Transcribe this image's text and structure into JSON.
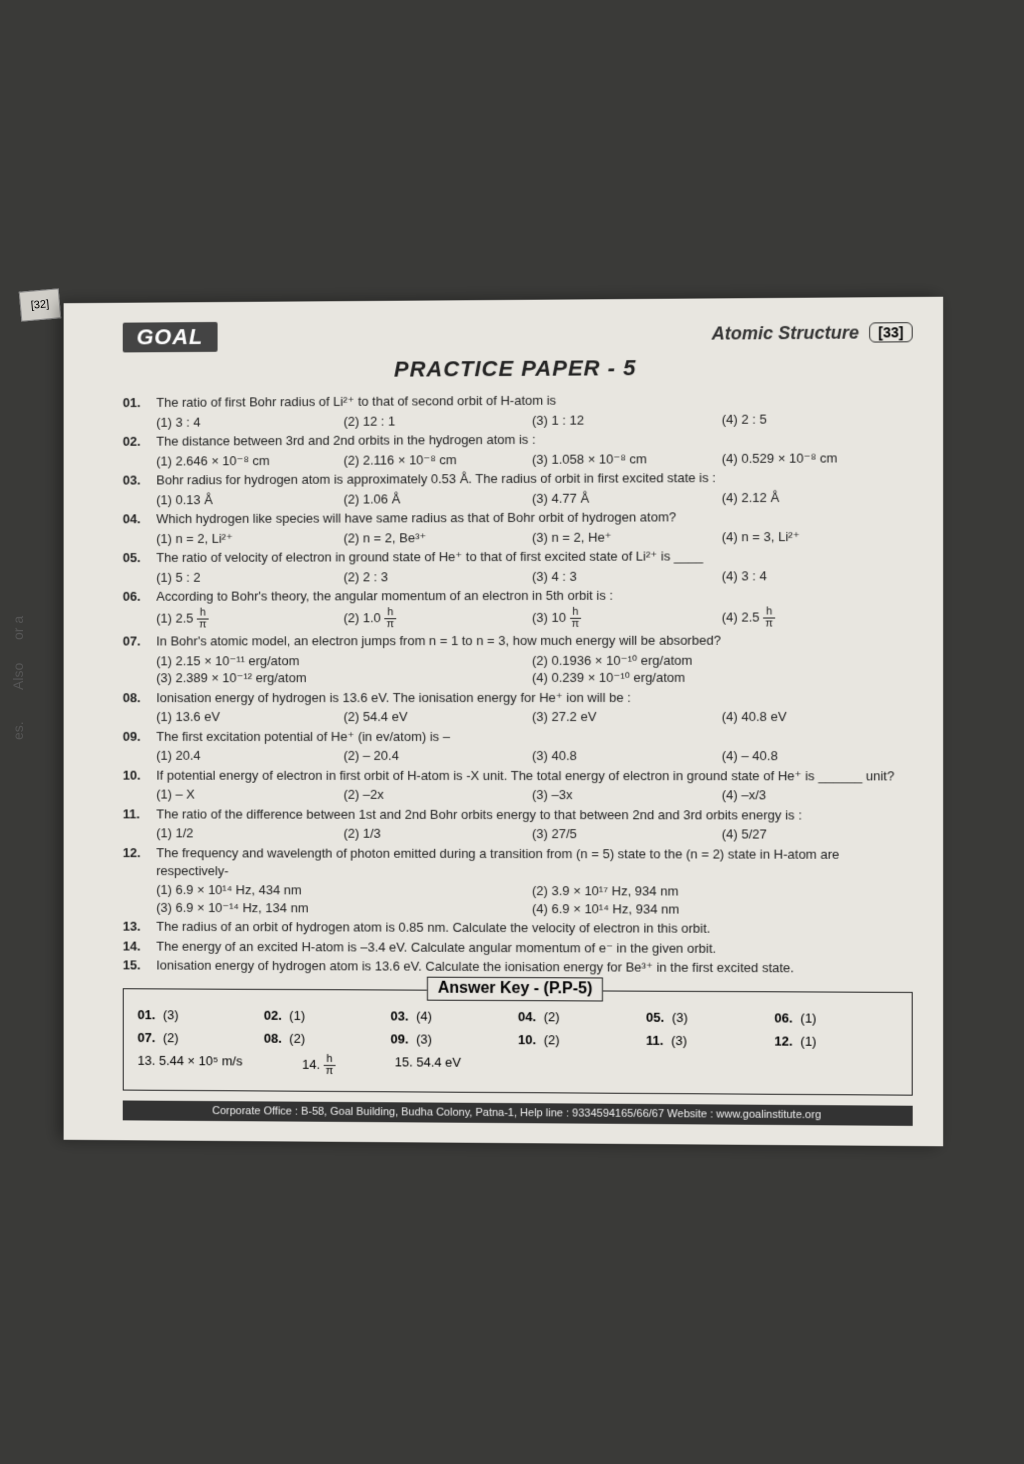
{
  "side_tab": "[32]",
  "side_labels": [
    "or a",
    "Also",
    "es."
  ],
  "header": {
    "logo": "GOAL",
    "chapter": "Atomic Structure",
    "page_box": "[33]"
  },
  "paper_title": "PRACTICE PAPER - 5",
  "questions": [
    {
      "n": "01.",
      "text": "The ratio of first Bohr radius of Li²⁺ to that of second orbit of H-atom is",
      "opts": [
        "(1)  3 : 4",
        "(2)  12 : 1",
        "(3)  1 : 12",
        "(4)  2 : 5"
      ]
    },
    {
      "n": "02.",
      "text": "The distance between 3rd and 2nd orbits in the hydrogen atom is :",
      "opts": [
        "(1)  2.646 × 10⁻⁸ cm",
        "(2)  2.116 × 10⁻⁸ cm",
        "(3)  1.058 × 10⁻⁸ cm",
        "(4)  0.529 × 10⁻⁸ cm"
      ]
    },
    {
      "n": "03.",
      "text": "Bohr radius for hydrogen atom is approximately 0.53 Å. The radius of orbit in first excited state is :",
      "opts": [
        "(1)  0.13 Å",
        "(2)  1.06 Å",
        "(3)  4.77 Å",
        "(4)  2.12 Å"
      ]
    },
    {
      "n": "04.",
      "text": "Which hydrogen like species will have same radius as that of Bohr orbit of hydrogen atom?",
      "opts": [
        "(1)  n = 2, Li²⁺",
        "(2)  n = 2, Be³⁺",
        "(3)  n = 2, He⁺",
        "(4)  n = 3, Li²⁺"
      ]
    },
    {
      "n": "05.",
      "text": "The ratio of velocity of electron in ground state of He⁺ to that of first excited state of Li²⁺ is ____",
      "opts": [
        "(1)  5 : 2",
        "(2)  2 : 3",
        "(3)  4 : 3",
        "(4)  3 : 4"
      ]
    },
    {
      "n": "06.",
      "text": "According to Bohr's theory, the angular momentum of an electron in 5th orbit is :",
      "opts_frac": [
        {
          "p": "(1)  2.5",
          "t": "h",
          "b": "π"
        },
        {
          "p": "(2)  1.0",
          "t": "h",
          "b": "π"
        },
        {
          "p": "(3)  10",
          "t": "h",
          "b": "π"
        },
        {
          "p": "(4)  2.5",
          "t": "h",
          "b": "π"
        }
      ]
    },
    {
      "n": "07.",
      "text": "In Bohr's atomic model, an electron jumps from n = 1 to n = 3, how much energy will be absorbed?",
      "opts2": [
        "(1)  2.15 × 10⁻¹¹ erg/atom",
        "(2)  0.1936 × 10⁻¹⁰ erg/atom",
        "(3)  2.389 × 10⁻¹² erg/atom",
        "(4)  0.239 × 10⁻¹⁰ erg/atom"
      ]
    },
    {
      "n": "08.",
      "text": "Ionisation energy of hydrogen is 13.6 eV. The ionisation energy for He⁺ ion will be :",
      "opts": [
        "(1)  13.6 eV",
        "(2)  54.4 eV",
        "(3)  27.2 eV",
        "(4)  40.8 eV"
      ]
    },
    {
      "n": "09.",
      "text": "The first excitation potential of He⁺ (in ev/atom) is –",
      "opts": [
        "(1)  20.4",
        "(2)  – 20.4",
        "(3)  40.8",
        "(4)  – 40.8"
      ]
    },
    {
      "n": "10.",
      "text": "If potential energy of electron in first orbit of H-atom is -X unit. The total energy of electron in ground state of He⁺ is ______ unit?",
      "opts": [
        "(1)  – X",
        "(2)  –2x",
        "(3)  –3x",
        "(4)  –x/3"
      ]
    },
    {
      "n": "11.",
      "text": "The ratio of the difference between 1st and 2nd Bohr orbits energy to that between 2nd and 3rd orbits energy is :",
      "opts": [
        "(1)  1/2",
        "(2)  1/3",
        "(3)  27/5",
        "(4)  5/27"
      ]
    },
    {
      "n": "12.",
      "text": "The frequency and wavelength of photon emitted during a transition from (n = 5) state to the (n = 2) state in H-atom are respectively-",
      "opts2": [
        "(1)  6.9 × 10¹⁴ Hz, 434 nm",
        "(2)  3.9 × 10¹⁷ Hz, 934 nm",
        "(3)  6.9 × 10⁻¹⁴ Hz, 134 nm",
        "(4)  6.9 × 10¹⁴ Hz, 934 nm"
      ]
    },
    {
      "n": "13.",
      "text": "The radius of an orbit of hydrogen atom is 0.85 nm. Calculate the velocity of electron in this orbit."
    },
    {
      "n": "14.",
      "text": "The energy of an excited H-atom is –3.4 eV. Calculate angular momentum of e⁻ in the given orbit."
    },
    {
      "n": "15.",
      "text": "Ionisation energy of hydrogen atom is 13.6 eV. Calculate the ionisation energy for Be³⁺ in the first excited state."
    }
  ],
  "answer_key": {
    "title": "Answer Key - (P.P-5)",
    "row1": [
      {
        "n": "01.",
        "a": "(3)"
      },
      {
        "n": "02.",
        "a": "(1)"
      },
      {
        "n": "03.",
        "a": "(4)"
      },
      {
        "n": "04.",
        "a": "(2)"
      },
      {
        "n": "05.",
        "a": "(3)"
      },
      {
        "n": "06.",
        "a": "(1)"
      }
    ],
    "row2": [
      {
        "n": "07.",
        "a": "(2)"
      },
      {
        "n": "08.",
        "a": "(2)"
      },
      {
        "n": "09.",
        "a": "(3)"
      },
      {
        "n": "10.",
        "a": "(2)"
      },
      {
        "n": "11.",
        "a": "(3)"
      },
      {
        "n": "12.",
        "a": "(1)"
      }
    ],
    "row3": [
      {
        "n": "13.",
        "a": "5.44 × 10⁵ m/s"
      },
      {
        "n": "14.",
        "a_frac": {
          "t": "h",
          "b": "π"
        }
      },
      {
        "n": "15.",
        "a": "54.4 eV"
      }
    ]
  },
  "footer": "Corporate Office : B-58, Goal Building, Budha Colony, Patna-1, Help line : 9334594165/66/67 Website : www.goalinstitute.org"
}
